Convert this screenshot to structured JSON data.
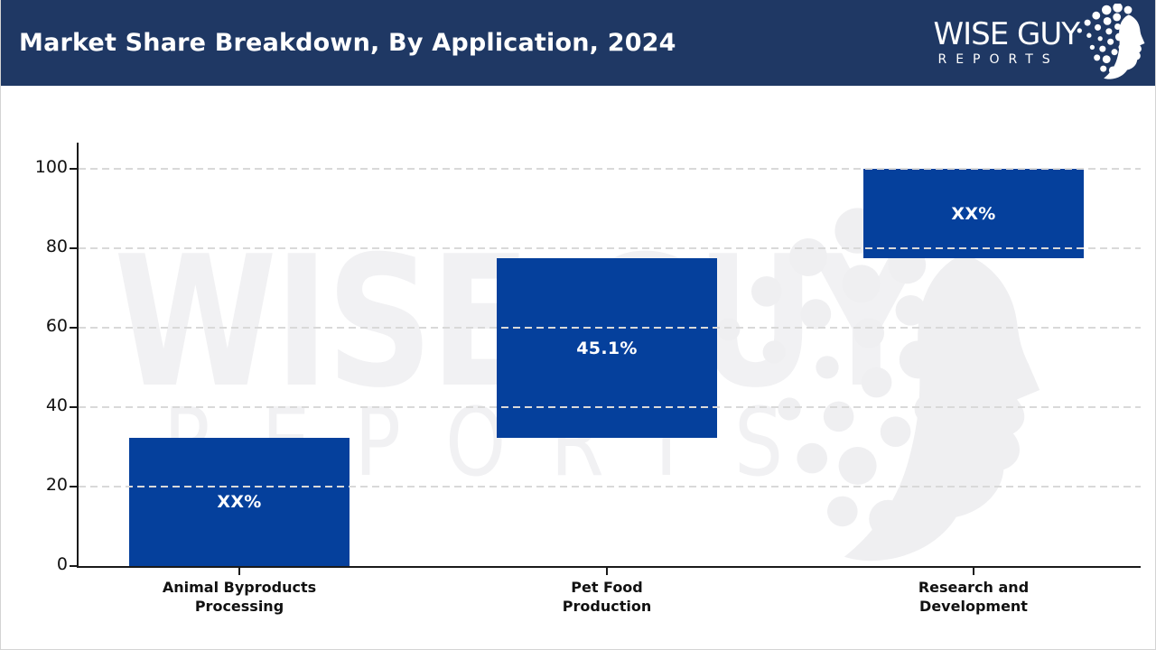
{
  "page": {
    "background": "#ffffff",
    "edge_border_color": "#d4d4d4"
  },
  "header": {
    "bg_color": "#1f3864",
    "title": "Market Share Breakdown, By Application, 2024",
    "title_color": "#ffffff",
    "logo": {
      "name": "WISE GUY",
      "subtitle": "REPORTS",
      "color": "#ffffff"
    }
  },
  "watermark": {
    "line1": "WISE GUY",
    "line2": "REPORTS",
    "color": "#f1f1f3"
  },
  "chart_data": {
    "type": "bar",
    "subtype": "floating-waterfall-bars",
    "title": "Market Share Breakdown, By Application, 2024",
    "unit": "%",
    "categories": [
      "Animal Byproducts Processing",
      "Pet Food Production",
      "Research and Development"
    ],
    "segments": [
      {
        "category": "Animal Byproducts Processing",
        "category_lines": [
          "Animal Byproducts",
          "Processing"
        ],
        "slug": "animal-byproducts-processing",
        "start": 0,
        "end": 32.3,
        "value_label": "XX%"
      },
      {
        "category": "Pet Food Production",
        "category_lines": [
          "Pet Food",
          "Production"
        ],
        "slug": "pet-food-production",
        "start": 32.3,
        "end": 77.4,
        "value": 45.1,
        "value_label": "45.1%"
      },
      {
        "category": "Research and Development",
        "category_lines": [
          "Research and",
          "Development"
        ],
        "slug": "research-and-development",
        "start": 77.4,
        "end": 100,
        "value_label": "XX%"
      }
    ],
    "ylim": [
      0,
      100
    ],
    "yticks": [
      0,
      20,
      40,
      60,
      80,
      100
    ],
    "grid": "horizontal dashed gridlines drawn above bars",
    "legend": false,
    "bar_color": "#05409c",
    "bar_label_color": "#ffffff",
    "grid_color": "#d9d9d9",
    "axis_color": "#1a1a1a",
    "tick_label_color": "#111111"
  }
}
